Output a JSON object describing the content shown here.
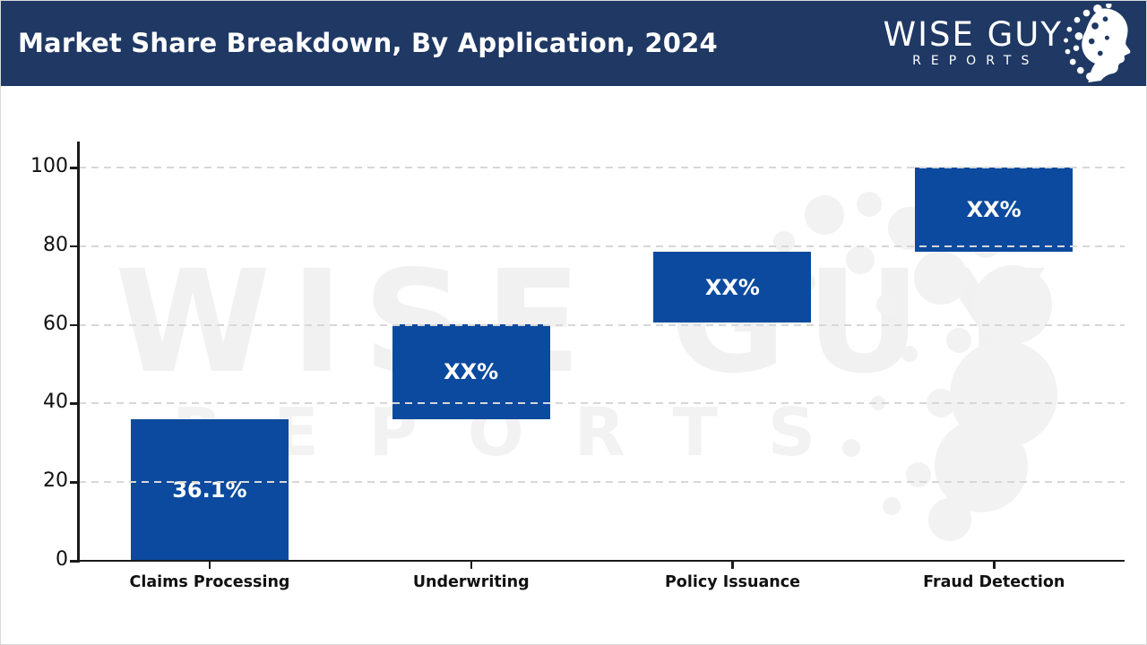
{
  "header": {
    "title": "Market Share Breakdown, By Application, 2024",
    "logo": {
      "line1": "WISE GUY",
      "line2": "REPORTS"
    }
  },
  "watermark": {
    "line1": "WISE GUY",
    "line2": "REPORTS"
  },
  "chart_data": {
    "type": "bar",
    "subtype": "waterfall-floating-bars",
    "title": "Market Share Breakdown, By Application, 2024",
    "xlabel": "",
    "ylabel": "",
    "categories": [
      "Claims Processing",
      "Underwriting",
      "Policy Issuance",
      "Fraud Detection"
    ],
    "segments": [
      {
        "category": "Claims Processing",
        "start": 0,
        "end": 36.1,
        "label": "36.1%"
      },
      {
        "category": "Underwriting",
        "start": 36.1,
        "end": 60.2,
        "label": "XX%"
      },
      {
        "category": "Policy Issuance",
        "start": 60.6,
        "end": 78.5,
        "label": "XX%"
      },
      {
        "category": "Fraud Detection",
        "start": 78.5,
        "end": 100,
        "label": "XX%"
      }
    ],
    "yticks": [
      0,
      20,
      40,
      60,
      80,
      100
    ],
    "ylim": [
      0,
      106.5
    ],
    "grid": "dashed-horizontal-over-bars",
    "legend": "none",
    "bar_color": "#0b4a9e",
    "bar_label_color": "#ffffff",
    "grid_color": "#d7d7d7",
    "axis_color": "#1a1a1a",
    "header_bg": "#1f3864",
    "watermark_color": "#f1f1f1"
  }
}
